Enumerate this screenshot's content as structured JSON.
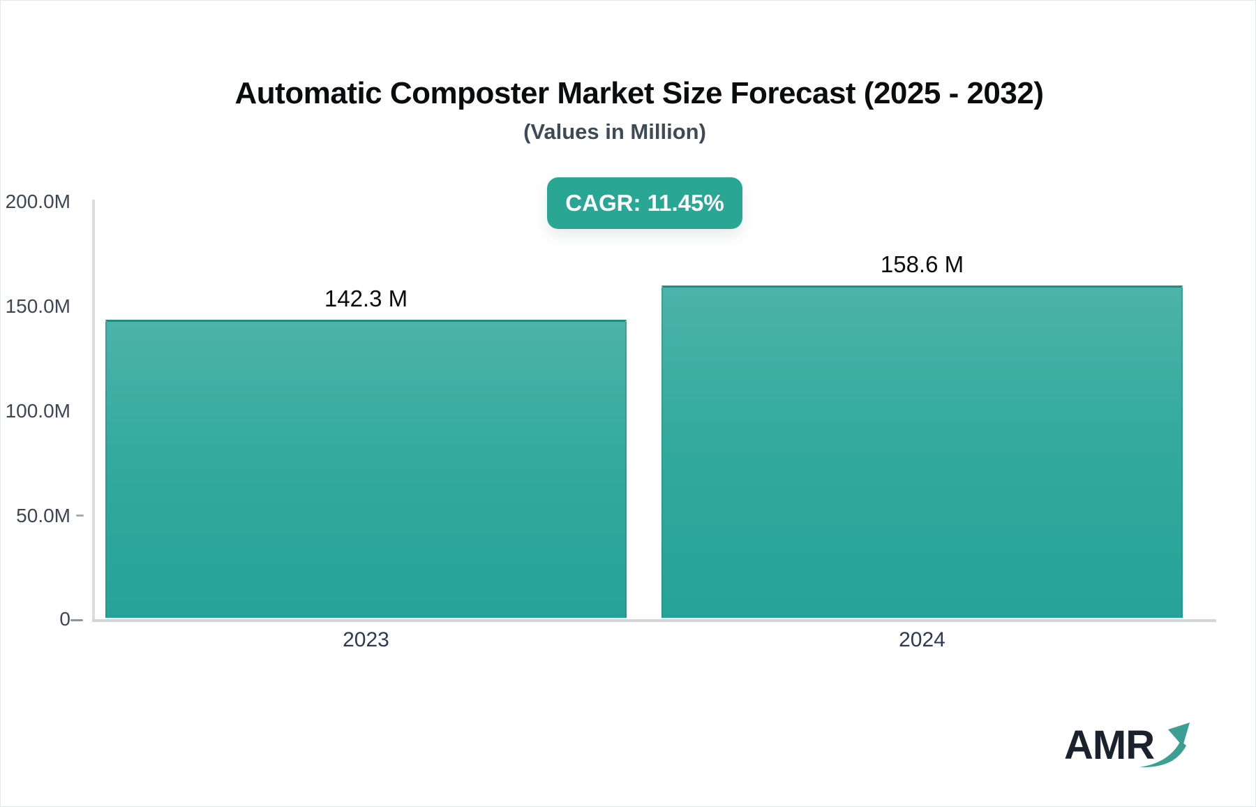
{
  "header": {
    "title": "Automatic Composter Market Size Forecast (2025 - 2032)",
    "subtitle": "(Values in Million)",
    "cagr_badge": "CAGR: 11.45%"
  },
  "chart_data": {
    "type": "bar",
    "categories": [
      "2023",
      "2024"
    ],
    "values": [
      142.3,
      158.6
    ],
    "value_labels": [
      "142.3 M",
      "158.6 M"
    ],
    "title": "Automatic Composter Market Size Forecast (2025 - 2032)",
    "subtitle": "(Values in Million)",
    "xlabel": "",
    "ylabel": "",
    "ylim": [
      0,
      200
    ],
    "yticks": [
      "200.0M",
      "150.0M",
      "100.0M",
      "50.0M",
      "0"
    ],
    "grid": false,
    "legend": "none",
    "annotations": [
      "CAGR: 11.45%"
    ],
    "colors": {
      "bar_fill_top": "#4db3aa",
      "bar_fill_bottom": "#26a398",
      "bar_border": "#1f8e81",
      "badge_background": "#2aa694",
      "badge_text": "#ffffff",
      "axis_line": "#d2d6db",
      "axis_text": "#3d4654",
      "title_text": "#0b0c0e"
    }
  },
  "logo": {
    "text": "AMR",
    "arrow_icon_color": "#3b9f93"
  }
}
